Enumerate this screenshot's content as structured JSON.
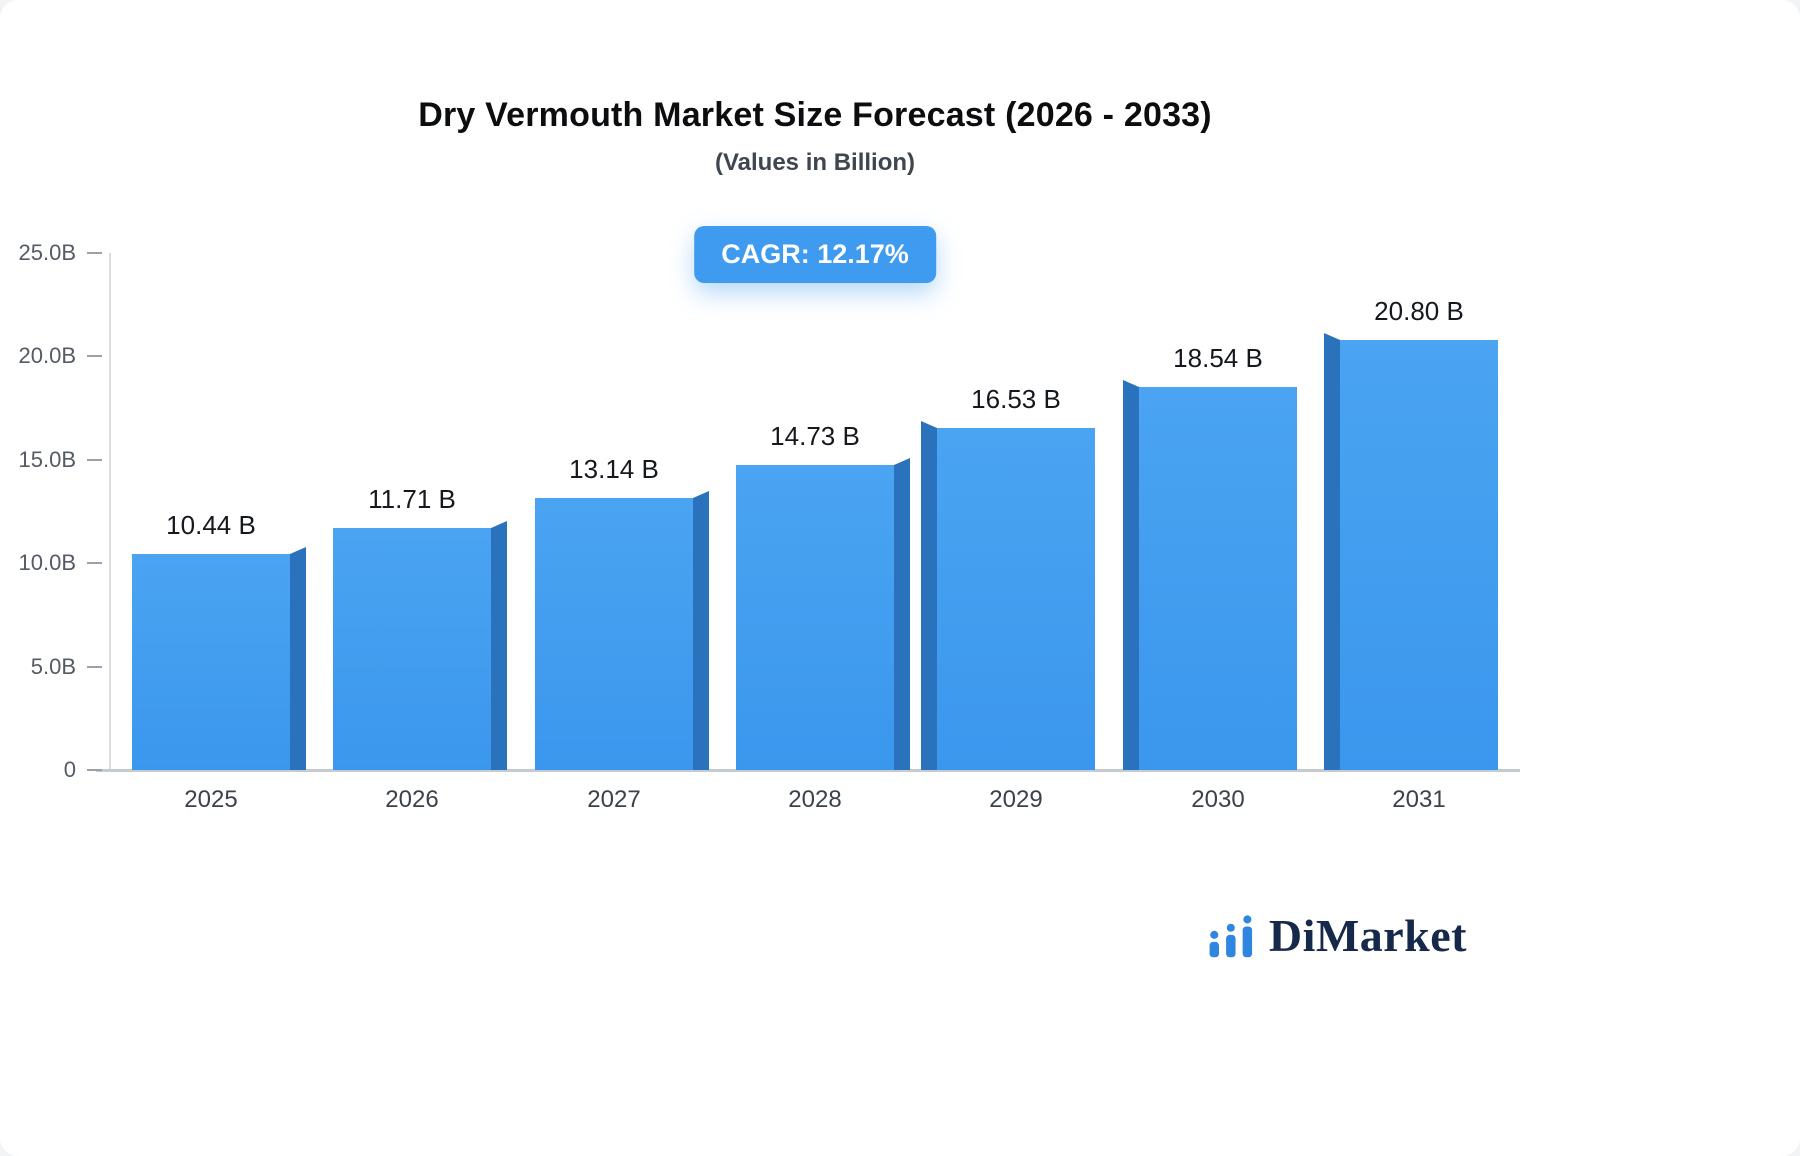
{
  "header": {
    "title": "Dry Vermouth Market Size Forecast (2026 - 2033)",
    "subtitle": "(Values in Billion)"
  },
  "cagr": {
    "label": "CAGR: 12.17%"
  },
  "chart_data": {
    "type": "bar",
    "title": "Dry Vermouth Market Size Forecast (2026 - 2033)",
    "subtitle": "(Values in Billion)",
    "categories": [
      "2025",
      "2026",
      "2027",
      "2028",
      "2029",
      "2030",
      "2031"
    ],
    "values": [
      10.44,
      11.71,
      13.14,
      14.73,
      16.53,
      18.54,
      20.8
    ],
    "value_labels": [
      "10.44 B",
      "11.71 B",
      "13.14 B",
      "14.73 B",
      "16.53 B",
      "18.54 B",
      "20.80 B"
    ],
    "xlabel": "",
    "ylabel": "",
    "ylim": [
      0,
      25
    ],
    "y_tick_labels": [
      "0",
      "5.0B",
      "10.0B",
      "15.0B",
      "20.0B",
      "25.0B"
    ],
    "grid": false,
    "legend": "none",
    "annotation": "CAGR: 12.17%"
  },
  "colors": {
    "bar": "#3B97ED",
    "bar_light": "#4AA4F2",
    "bar_side": "#2B72BD",
    "badge": "#3E9BF0",
    "logo_navy": "#17294A",
    "logo_blue": "#2F86E0"
  },
  "logo": {
    "text": "DiMarket"
  }
}
